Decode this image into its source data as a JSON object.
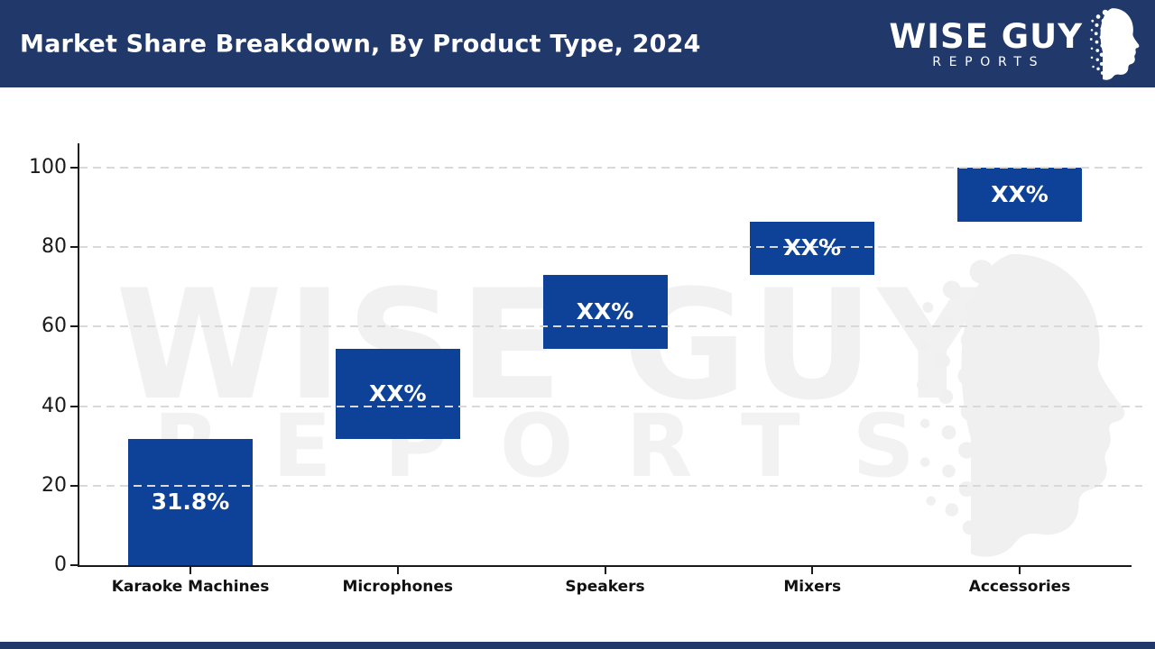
{
  "header": {
    "title": "Market Share Breakdown, By Product Type, 2024",
    "logo": {
      "line1": "WISE GUY",
      "line2": "REPORTS"
    }
  },
  "watermark": {
    "line1": "WISE GUY",
    "line2": "REPORTS"
  },
  "colors": {
    "header_navy": "#21386a",
    "bar_blue": "#0d4298",
    "grid_gray": "#d9d9d9",
    "axis_black": "#1a1a1a",
    "watermark_gray": "#f1f1f1"
  },
  "chart_data": {
    "type": "bar",
    "subtype": "waterfall",
    "title": "Market Share Breakdown, By Product Type, 2024",
    "categories": [
      "Karaoke Machines",
      "Microphones",
      "Speakers",
      "Mixers",
      "Accessories"
    ],
    "segments": [
      {
        "category": "Karaoke Machines",
        "start": 0,
        "end": 31.8,
        "label": "31.8%"
      },
      {
        "category": "Microphones",
        "start": 31.8,
        "end": 54.5,
        "label": "XX%"
      },
      {
        "category": "Speakers",
        "start": 54.5,
        "end": 73.0,
        "label": "XX%"
      },
      {
        "category": "Mixers",
        "start": 73.0,
        "end": 86.5,
        "label": "XX%"
      },
      {
        "category": "Accessories",
        "start": 86.5,
        "end": 100,
        "label": "XX%"
      }
    ],
    "xlabel": "",
    "ylabel": "",
    "ylim": [
      0,
      100
    ],
    "yticks": [
      0,
      20,
      40,
      60,
      80,
      100
    ],
    "grid": "horizontal-dashed, drawn above bars",
    "legend": "none",
    "bar_value_labels_inside": true
  }
}
